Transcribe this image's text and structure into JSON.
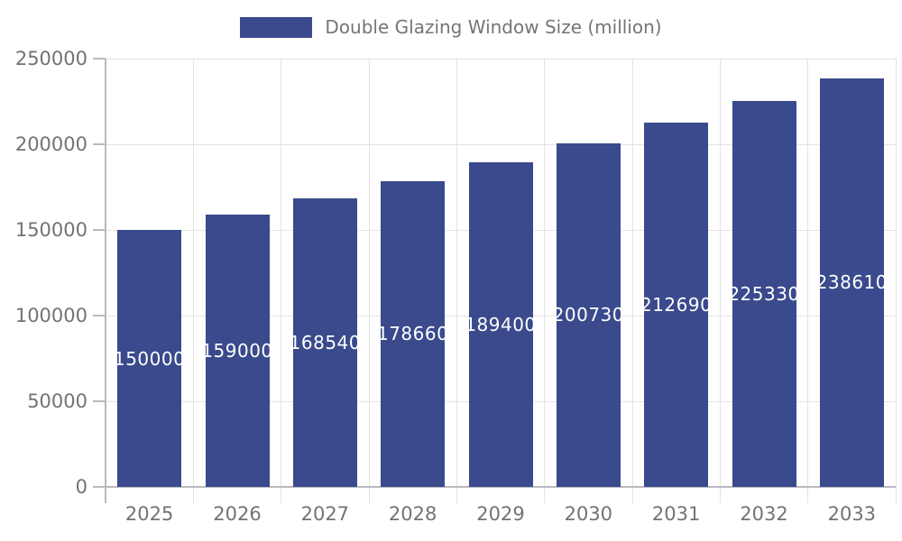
{
  "chart_data": {
    "type": "bar",
    "title": "Double Glazing Window Size (million)",
    "legend": [
      "Double Glazing Window Size (million)"
    ],
    "legend_position": "top-center",
    "categories": [
      "2025",
      "2026",
      "2027",
      "2028",
      "2029",
      "2030",
      "2031",
      "2032",
      "2033"
    ],
    "series": [
      {
        "name": "Double Glazing Window Size (million)",
        "values": [
          150000,
          159000,
          168540,
          178660,
          189400,
          200730,
          212690,
          225330,
          238610
        ]
      }
    ],
    "value_labels": [
      "150000",
      "159000",
      "168540",
      "178660",
      "189400",
      "200730",
      "212690",
      "225330",
      "238610"
    ],
    "xlabel": "",
    "ylabel": "",
    "ylim": [
      0,
      250000
    ],
    "yticks": [
      0,
      50000,
      100000,
      150000,
      200000,
      250000
    ],
    "ytick_labels": [
      "0",
      "50000",
      "100000",
      "150000",
      "200000",
      "250000"
    ],
    "grid": true,
    "colors": {
      "bar": "#3a4a8c",
      "value_label": "#ffffff",
      "grid_line": "#e3e3e3",
      "axis_line": "#b9b9c0",
      "tick_label": "#737373",
      "legend_text": "#757575",
      "background": "#ffffff"
    }
  }
}
